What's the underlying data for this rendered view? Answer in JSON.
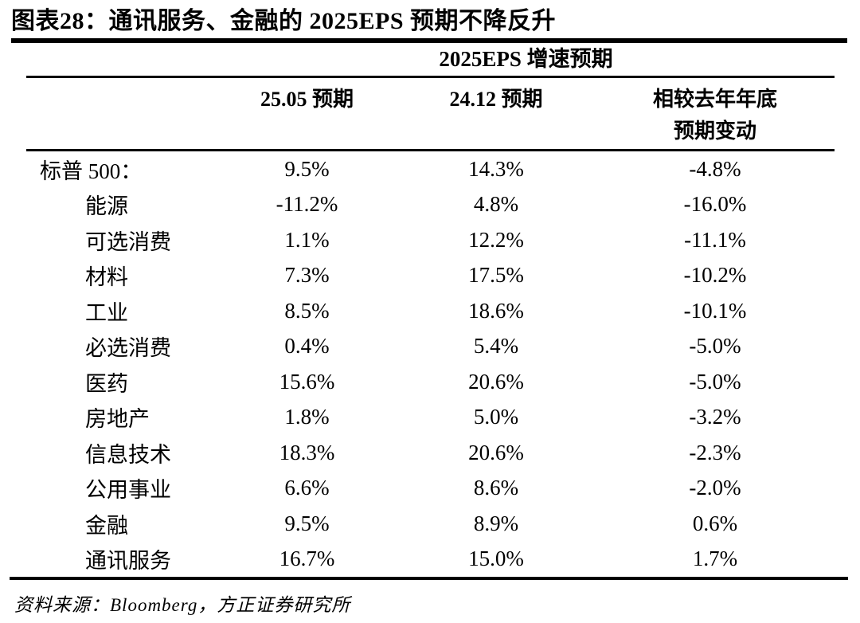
{
  "figure": {
    "title": "图表28：通讯服务、金融的 2025EPS 预期不降反升",
    "source": "资料来源：Bloomberg，方正证券研究所"
  },
  "table_header": {
    "spanner": "2025EPS 增速预期",
    "col1": "25.05 预期",
    "col2": "24.12 预期",
    "col3_line1": "相较去年年底",
    "col3_line2": "预期变动"
  },
  "colors": {
    "text": "#000000",
    "background": "#ffffff",
    "rule": "#000000"
  },
  "chart_data": {
    "type": "table",
    "title": "2025EPS 增速预期",
    "columns": [
      "",
      "25.05 预期",
      "24.12 预期",
      "相较去年年底 预期变动"
    ],
    "rows": [
      {
        "label": "标普 500：",
        "indent": false,
        "values": [
          "9.5%",
          "14.3%",
          "-4.8%"
        ]
      },
      {
        "label": "能源",
        "indent": true,
        "values": [
          "-11.2%",
          "4.8%",
          "-16.0%"
        ]
      },
      {
        "label": "可选消费",
        "indent": true,
        "values": [
          "1.1%",
          "12.2%",
          "-11.1%"
        ]
      },
      {
        "label": "材料",
        "indent": true,
        "values": [
          "7.3%",
          "17.5%",
          "-10.2%"
        ]
      },
      {
        "label": "工业",
        "indent": true,
        "values": [
          "8.5%",
          "18.6%",
          "-10.1%"
        ]
      },
      {
        "label": "必选消费",
        "indent": true,
        "values": [
          "0.4%",
          "5.4%",
          "-5.0%"
        ]
      },
      {
        "label": "医药",
        "indent": true,
        "values": [
          "15.6%",
          "20.6%",
          "-5.0%"
        ]
      },
      {
        "label": "房地产",
        "indent": true,
        "values": [
          "1.8%",
          "5.0%",
          "-3.2%"
        ]
      },
      {
        "label": "信息技术",
        "indent": true,
        "values": [
          "18.3%",
          "20.6%",
          "-2.3%"
        ]
      },
      {
        "label": "公用事业",
        "indent": true,
        "values": [
          "6.6%",
          "8.6%",
          "-2.0%"
        ]
      },
      {
        "label": "金融",
        "indent": true,
        "values": [
          "9.5%",
          "8.9%",
          "0.6%"
        ]
      },
      {
        "label": "通讯服务",
        "indent": true,
        "values": [
          "16.7%",
          "15.0%",
          "1.7%"
        ]
      }
    ],
    "source": "资料来源：Bloomberg，方正证券研究所"
  }
}
